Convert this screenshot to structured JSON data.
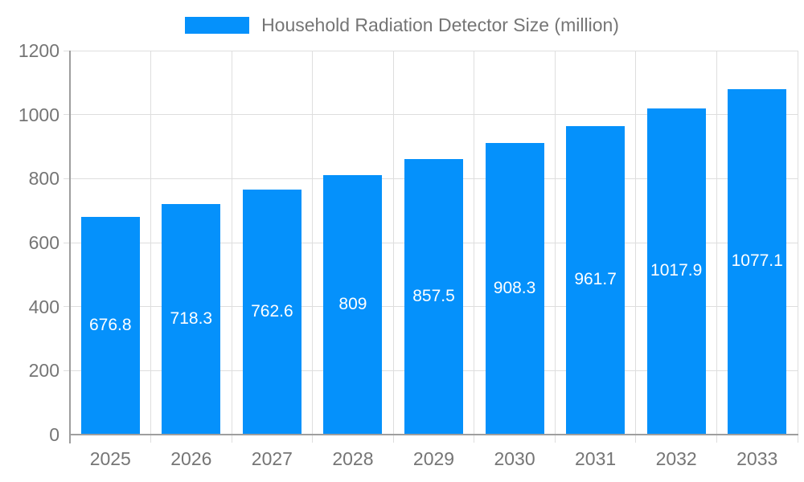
{
  "chart_data": {
    "type": "bar",
    "title": "Household Radiation Detector Size (million)",
    "categories": [
      "2025",
      "2026",
      "2027",
      "2028",
      "2029",
      "2030",
      "2031",
      "2032",
      "2033"
    ],
    "values": [
      676.8,
      718.3,
      762.6,
      809,
      857.5,
      908.3,
      961.7,
      1017.9,
      1077.1
    ],
    "value_labels": [
      "676.8",
      "718.3",
      "762.6",
      "809",
      "857.5",
      "908.3",
      "961.7",
      "1017.9",
      "1077.1"
    ],
    "xlabel": "",
    "ylabel": "",
    "ylim": [
      0,
      1200
    ],
    "yticks": [
      0,
      200,
      400,
      600,
      800,
      1000,
      1200
    ],
    "ytick_labels": [
      "0",
      "200",
      "400",
      "600",
      "800",
      "1000",
      "1200"
    ],
    "grid": "on",
    "legend_position": "top-center",
    "colors": {
      "bar": "#0591fb",
      "value_label_text": "#ffffff",
      "axis_text": "#757575",
      "legend_text": "#757575",
      "gridline": "#dedede",
      "axis_line": "#9e9e9e",
      "background": "#ffffff"
    }
  }
}
